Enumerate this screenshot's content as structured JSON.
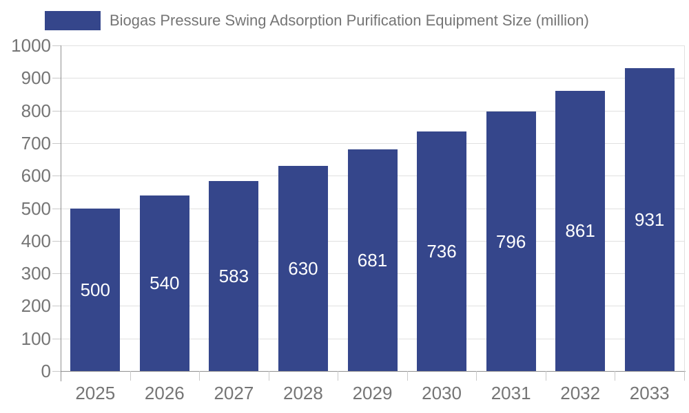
{
  "legend": {
    "label": "Biogas Pressure Swing Adsorption Purification Equipment Size (million)"
  },
  "chart_data": {
    "type": "bar",
    "title": "Biogas Pressure Swing Adsorption Purification Equipment Size (million)",
    "series_name": "Biogas Pressure Swing Adsorption Purification Equipment Size (million)",
    "categories": [
      "2025",
      "2026",
      "2027",
      "2028",
      "2029",
      "2030",
      "2031",
      "2032",
      "2033"
    ],
    "values": [
      500,
      540,
      583,
      630,
      681,
      736,
      796,
      861,
      931
    ],
    "xlabel": "",
    "ylabel": "",
    "ylim": [
      0,
      1000
    ],
    "yticks": [
      0,
      100,
      200,
      300,
      400,
      500,
      600,
      700,
      800,
      900,
      1000
    ],
    "grid": true,
    "legend_position": "top-left",
    "value_label_position": "inside-center"
  },
  "colors": {
    "bar": "#35468B",
    "grid": "#e0e0e0",
    "axis_line": "#8f8f8f",
    "tick": "#c8c8c8",
    "axis_text": "#757575",
    "legend_text": "#757575",
    "value_label": "#ffffff",
    "background": "#ffffff"
  }
}
